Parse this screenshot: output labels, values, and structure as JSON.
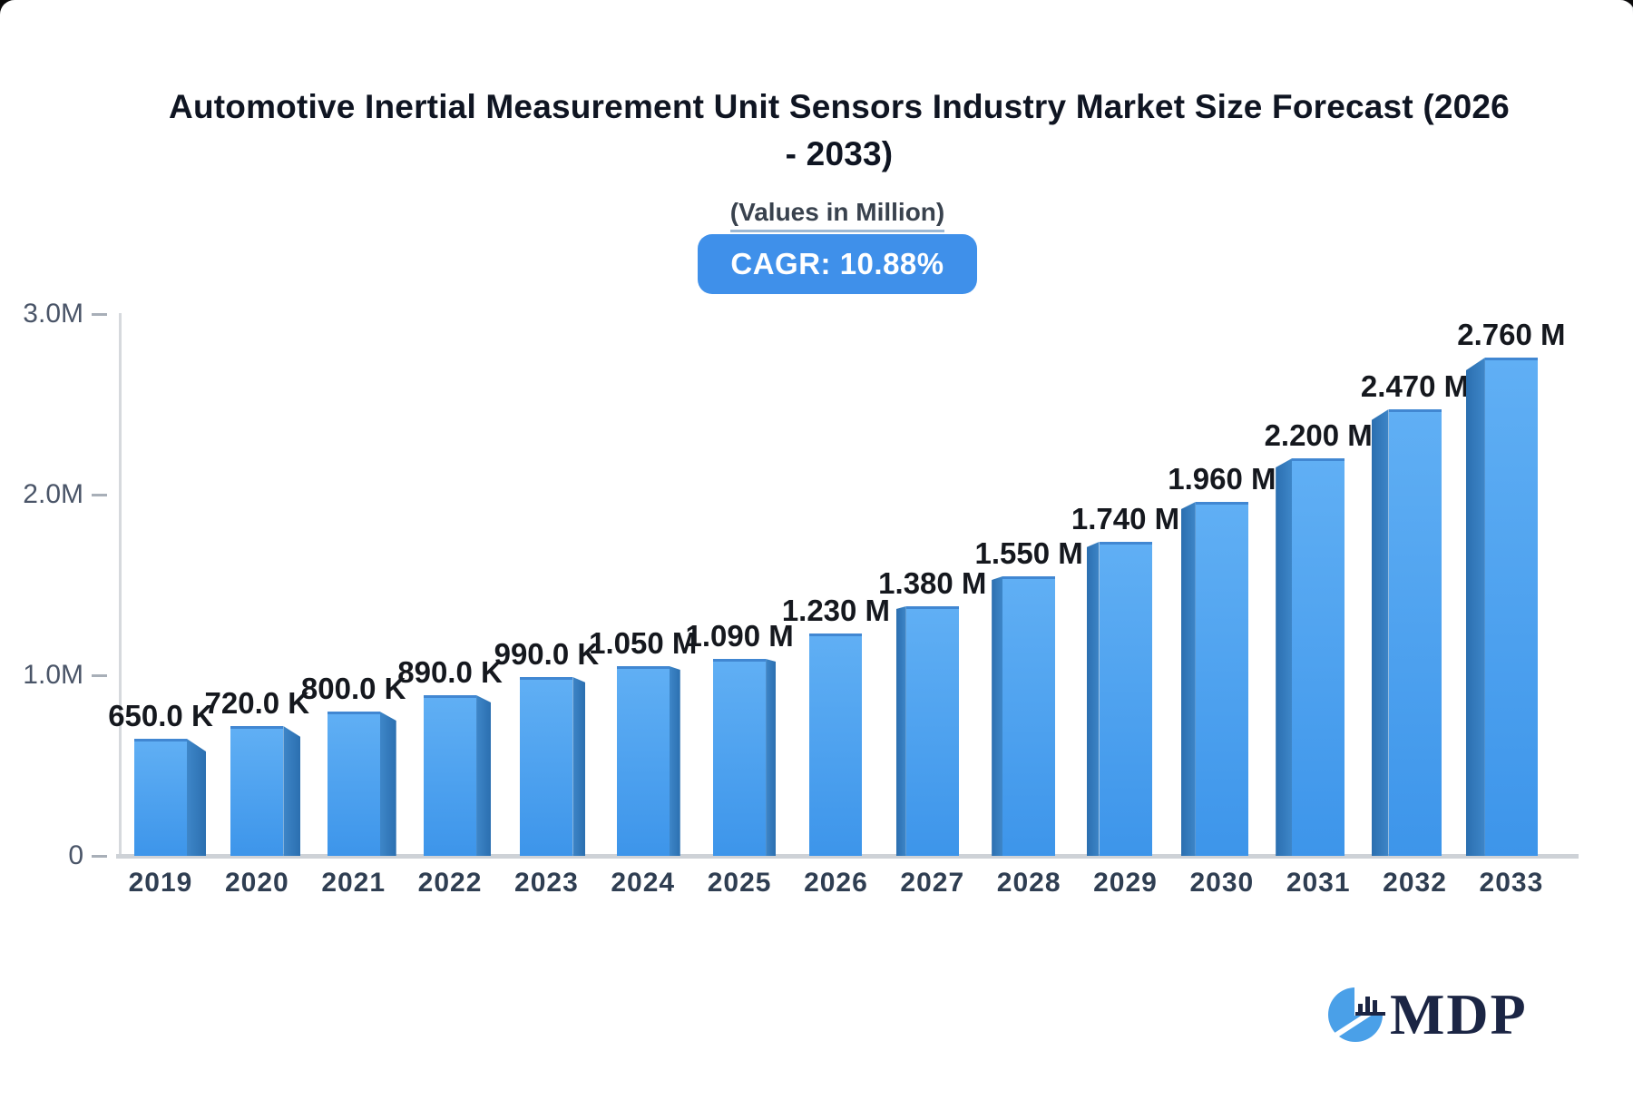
{
  "header": {
    "title_line1": "Automotive Inertial Measurement Unit Sensors Industry Market Size Forecast (2026",
    "title_line2": "- 2033)",
    "subtitle": "(Values in Million)",
    "cagr_badge": "CAGR: 10.88%"
  },
  "chart_data": {
    "type": "bar",
    "title": "Automotive Inertial Measurement Unit Sensors Industry Market Size Forecast (2026 - 2033)",
    "subtitle": "(Values in Million)",
    "cagr_percent": 10.88,
    "unit": "Million",
    "bar_style": "3d-perspective",
    "grid": false,
    "legend": false,
    "categories": [
      "2019",
      "2020",
      "2021",
      "2022",
      "2023",
      "2024",
      "2025",
      "2026",
      "2027",
      "2028",
      "2029",
      "2030",
      "2031",
      "2032",
      "2033"
    ],
    "values": [
      0.65,
      0.72,
      0.8,
      0.89,
      0.99,
      1.05,
      1.09,
      1.23,
      1.38,
      1.55,
      1.74,
      1.96,
      2.2,
      2.47,
      2.76
    ],
    "value_labels": [
      "650.0 K",
      "720.0 K",
      "800.0 K",
      "890.0 K",
      "990.0 K",
      "1.050 M",
      "1.090 M",
      "1.230 M",
      "1.380 M",
      "1.550 M",
      "1.740 M",
      "1.960 M",
      "2.200 M",
      "2.470 M",
      "2.760 M"
    ],
    "ylim": [
      0,
      3.0
    ],
    "ytick_values": [
      3.0,
      2.0,
      1.0,
      0
    ],
    "ytick_labels": [
      "3.0M",
      "2.0M",
      "1.0M",
      "0"
    ]
  },
  "colors": {
    "bar_face_top": "#60aff4",
    "bar_face_bottom": "#3d95ea",
    "bar_face_edge": "#4187d2",
    "bar_side_dark": "#2b6fb0",
    "bar_side_light": "#3e86c8",
    "badge_bg": "#3f90ea",
    "badge_text": "#ffffff",
    "axis_line": "#d6d9dd",
    "baseline": "#ced2d7",
    "tick": "#a8afb8",
    "ytick_text": "#4a5568",
    "xtick_text": "#2f3e52",
    "value_label_text": "#15181e",
    "title_text": "#0f1522",
    "subtitle_text": "#39424e",
    "logo_blue": "#4aa0e8",
    "logo_navy": "#1b2544"
  },
  "logo": {
    "text": "MDP"
  }
}
